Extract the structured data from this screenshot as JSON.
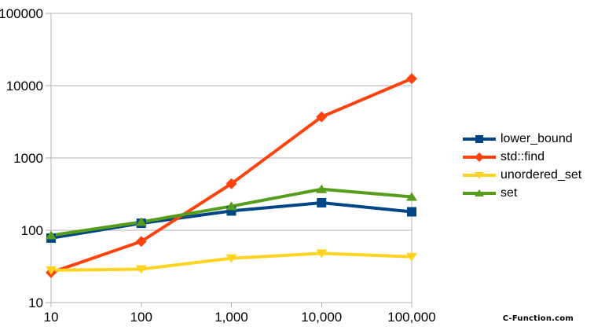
{
  "watermark": "C-Function.com",
  "colors": {
    "grid": "#b3b3b3",
    "text": "#000000",
    "background": "#ffffff"
  },
  "chart_data": {
    "type": "line",
    "title": "",
    "xlabel": "",
    "ylabel": "",
    "xscale": "log",
    "yscale": "log",
    "xlim": [
      10,
      100000
    ],
    "ylim": [
      10,
      100000
    ],
    "grid": "horizontal-major-only",
    "legend_position": "right",
    "x": [
      10,
      100,
      1000,
      10000,
      100000
    ],
    "x_tick_labels": [
      "10",
      "100",
      "1,000",
      "10,000",
      "100,000"
    ],
    "y_ticks": [
      10,
      100,
      1000,
      10000,
      100000
    ],
    "y_tick_labels": [
      "10",
      "100",
      "1000",
      "10000",
      "100000"
    ],
    "series": [
      {
        "name": "lower_bound",
        "color": "#004586",
        "marker": "square",
        "values": [
          78,
          125,
          185,
          240,
          180
        ]
      },
      {
        "name": "std::find",
        "color": "#ff420e",
        "marker": "diamond",
        "values": [
          26,
          70,
          440,
          3700,
          12500
        ]
      },
      {
        "name": "unordered_set",
        "color": "#ffd320",
        "marker": "triangle-down",
        "values": [
          28,
          29,
          41,
          48,
          43
        ]
      },
      {
        "name": "set",
        "color": "#579d1c",
        "marker": "triangle-up",
        "values": [
          85,
          130,
          215,
          370,
          290
        ]
      }
    ]
  }
}
